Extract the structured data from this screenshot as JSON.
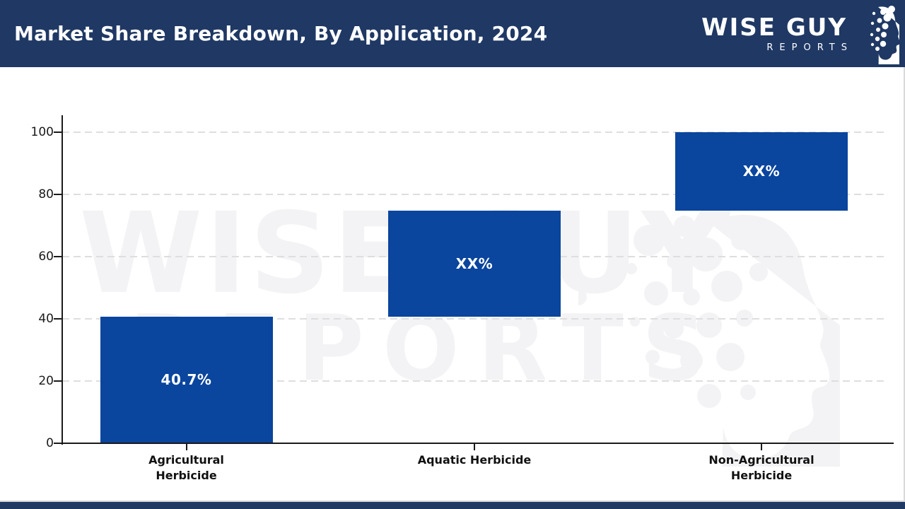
{
  "header": {
    "title": "Market Share Breakdown, By Application, 2024",
    "logo": {
      "line1": "WISE GUY",
      "line2": "REPORTS"
    }
  },
  "watermark": {
    "line1": "WISE GUY",
    "line2": "REPORTS"
  },
  "colors": {
    "header_bg": "#1f3864",
    "footer_bg": "#1f3864",
    "bar": "#0a459e",
    "bar_label": "#ffffff",
    "grid": "#dedede",
    "axis": "#1a1a1a",
    "watermark": "#f3f3f5"
  },
  "chart_data": {
    "type": "bar",
    "subtype": "waterfall",
    "title": "Market Share Breakdown, By Application, 2024",
    "categories": [
      "Agricultural Herbicide",
      "Aquatic Herbicide",
      "Non-Agricultural Herbicide"
    ],
    "category_lines": [
      [
        "Agricultural",
        "Herbicide"
      ],
      [
        "Aquatic Herbicide"
      ],
      [
        "Non-Agricultural",
        "Herbicide"
      ]
    ],
    "series": [
      {
        "name": "Market Share (%)",
        "segments": [
          {
            "category": "Agricultural Herbicide",
            "start": 0,
            "end": 40.7,
            "label": "40.7%"
          },
          {
            "category": "Aquatic Herbicide",
            "start": 40.7,
            "end": 74.8,
            "label": "XX%"
          },
          {
            "category": "Non-Agricultural Herbicide",
            "start": 74.8,
            "end": 100,
            "label": "XX%"
          }
        ]
      }
    ],
    "ylim": [
      0,
      100
    ],
    "yticks": [
      0,
      20,
      40,
      60,
      80,
      100
    ],
    "xlabel": "",
    "ylabel": "",
    "grid": "dashed-horizontal",
    "legend": "none"
  }
}
